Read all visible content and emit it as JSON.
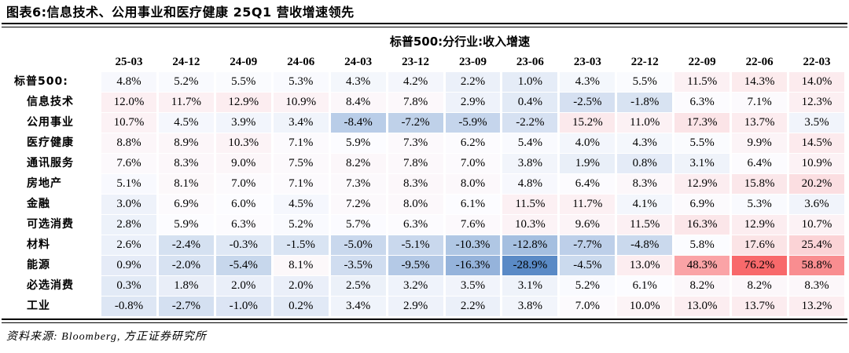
{
  "title": "图表6:信息技术、公用事业和医疗健康 25Q1 营收增速领先",
  "footer": "资料来源: Bloomberg, 方正证券研究所",
  "chart_data": {
    "type": "heatmap",
    "title": "标普500:分行业:收入增速",
    "columns": [
      "25-03",
      "24-12",
      "24-09",
      "24-06",
      "24-03",
      "23-12",
      "23-09",
      "23-06",
      "23-03",
      "22-12",
      "22-09",
      "22-06",
      "22-03"
    ],
    "rows": [
      {
        "label": "标普500:",
        "values": [
          4.8,
          5.2,
          5.5,
          5.3,
          4.3,
          4.2,
          2.2,
          1.0,
          4.3,
          5.5,
          11.5,
          14.3,
          14.0
        ]
      },
      {
        "label": "信息技术",
        "values": [
          12.0,
          11.7,
          12.9,
          10.9,
          8.4,
          7.8,
          2.9,
          0.4,
          -2.5,
          -1.8,
          6.3,
          7.1,
          12.3
        ]
      },
      {
        "label": "公用事业",
        "values": [
          10.7,
          4.5,
          3.9,
          3.4,
          -8.4,
          -7.2,
          -5.9,
          -2.2,
          15.2,
          11.0,
          17.3,
          13.7,
          3.5
        ]
      },
      {
        "label": "医疗健康",
        "values": [
          8.8,
          8.9,
          10.3,
          7.1,
          5.9,
          7.3,
          6.2,
          5.4,
          4.0,
          4.3,
          5.5,
          9.9,
          14.5
        ]
      },
      {
        "label": "通讯服务",
        "values": [
          7.6,
          8.3,
          9.0,
          7.5,
          8.2,
          7.8,
          7.0,
          3.8,
          1.9,
          0.8,
          3.1,
          6.4,
          10.9
        ]
      },
      {
        "label": "房地产",
        "values": [
          5.1,
          8.1,
          7.0,
          7.1,
          7.3,
          8.3,
          8.0,
          4.8,
          6.4,
          8.3,
          12.9,
          15.8,
          20.2
        ]
      },
      {
        "label": "金融",
        "values": [
          3.0,
          6.9,
          6.0,
          4.5,
          7.2,
          8.0,
          6.1,
          11.5,
          11.7,
          4.1,
          6.9,
          5.3,
          3.6
        ]
      },
      {
        "label": "可选消费",
        "values": [
          2.8,
          5.9,
          6.3,
          5.2,
          5.7,
          6.3,
          7.6,
          10.3,
          9.6,
          11.5,
          16.3,
          12.9,
          10.7
        ]
      },
      {
        "label": "材料",
        "values": [
          2.6,
          -2.4,
          -0.3,
          -1.5,
          -5.0,
          -5.1,
          -10.3,
          -12.8,
          -7.7,
          -4.8,
          5.8,
          17.6,
          25.4
        ]
      },
      {
        "label": "能源",
        "values": [
          0.9,
          -2.0,
          -5.4,
          8.1,
          -3.5,
          -9.5,
          -16.3,
          -28.9,
          -4.5,
          13.0,
          48.3,
          76.2,
          58.8
        ]
      },
      {
        "label": "必选消费",
        "values": [
          0.3,
          1.8,
          2.0,
          2.0,
          2.5,
          3.2,
          3.5,
          3.1,
          5.2,
          6.1,
          8.2,
          8.2,
          8.3
        ]
      },
      {
        "label": "工业",
        "values": [
          -0.8,
          -2.7,
          -1.0,
          0.2,
          3.4,
          2.9,
          2.2,
          3.8,
          7.0,
          10.0,
          13.0,
          13.7,
          13.2
        ]
      }
    ],
    "value_format": "percent_one_decimal",
    "color_scale": {
      "min_color": "#5A8AC6",
      "mid_color": "#FCFCFF",
      "max_color": "#F8696B"
    },
    "layout": {
      "legend": false,
      "grid": false,
      "row_label_column_first": true
    }
  }
}
